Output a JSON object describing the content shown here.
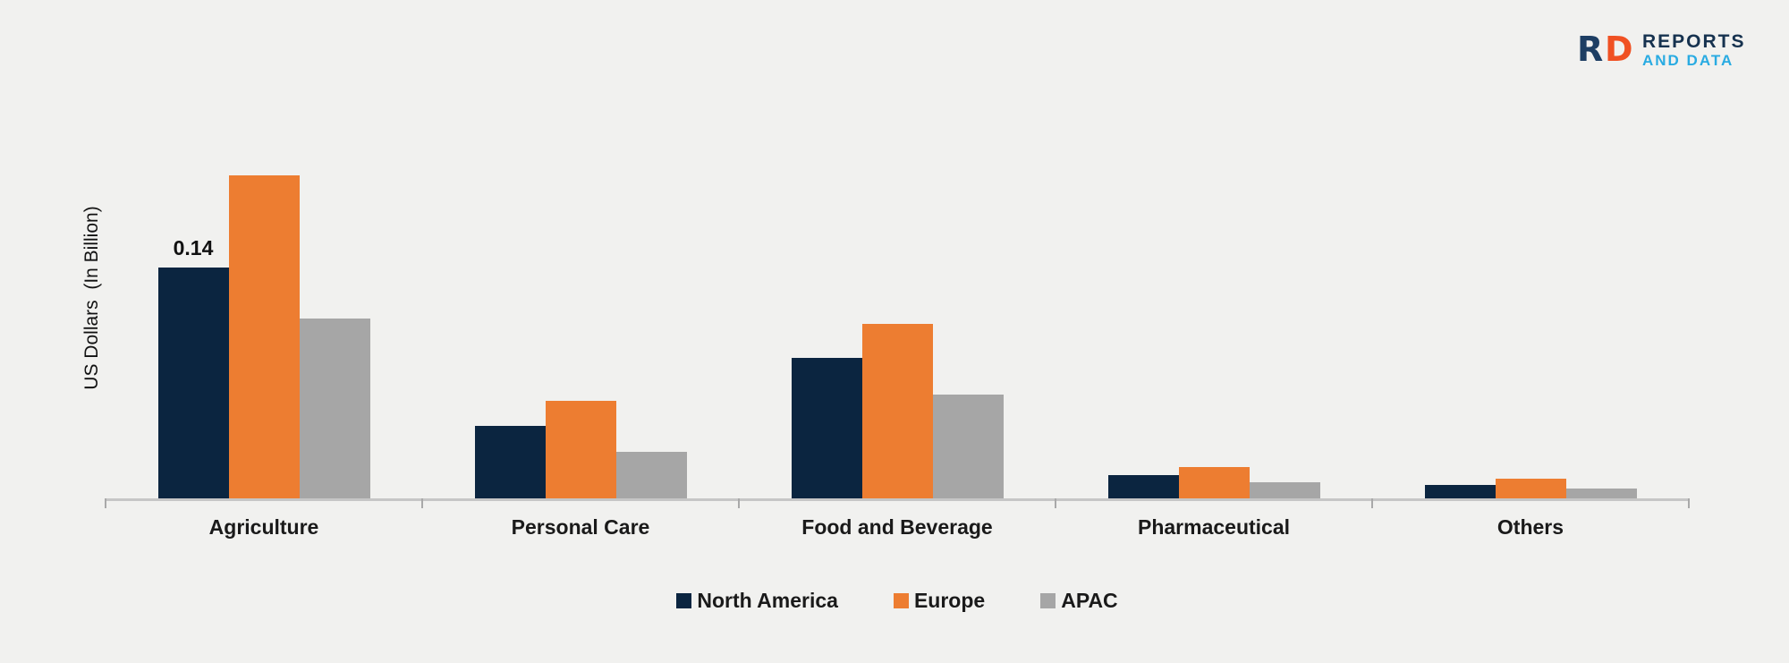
{
  "background": "#f1f1ef",
  "brand": {
    "mark_r": "R",
    "mark_d": "D",
    "line1": "REPORTS",
    "line2": "AND DATA",
    "colors": {
      "mark_r": "#1d3e63",
      "mark_d": "#f05123",
      "line1": "#16324f",
      "line2": "#29abe2"
    }
  },
  "chart_data": {
    "type": "bar",
    "title": "",
    "xlabel": "",
    "ylabel": "US Dollars  (In Billion)",
    "categories": [
      "Agriculture",
      "Personal Care",
      "Food and Beverage",
      "Pharmaceutical",
      "Others"
    ],
    "series": [
      {
        "name": "North America",
        "color": "#0b2540",
        "values": [
          0.14,
          0.044,
          0.085,
          0.014,
          0.008
        ],
        "data_labels": [
          "0.14",
          "",
          "",
          "",
          ""
        ]
      },
      {
        "name": "Europe",
        "color": "#ed7d31",
        "values": [
          0.196,
          0.059,
          0.106,
          0.019,
          0.012
        ],
        "data_labels": [
          "",
          "",
          "",
          "",
          ""
        ]
      },
      {
        "name": "APAC",
        "color": "#a6a6a6",
        "values": [
          0.109,
          0.028,
          0.063,
          0.01,
          0.006
        ],
        "data_labels": [
          "",
          "",
          "",
          "",
          ""
        ]
      }
    ],
    "ylim": [
      0,
      0.25
    ],
    "grid": false,
    "legend_position": "bottom",
    "axis_line_color": "#c6c6c6"
  }
}
